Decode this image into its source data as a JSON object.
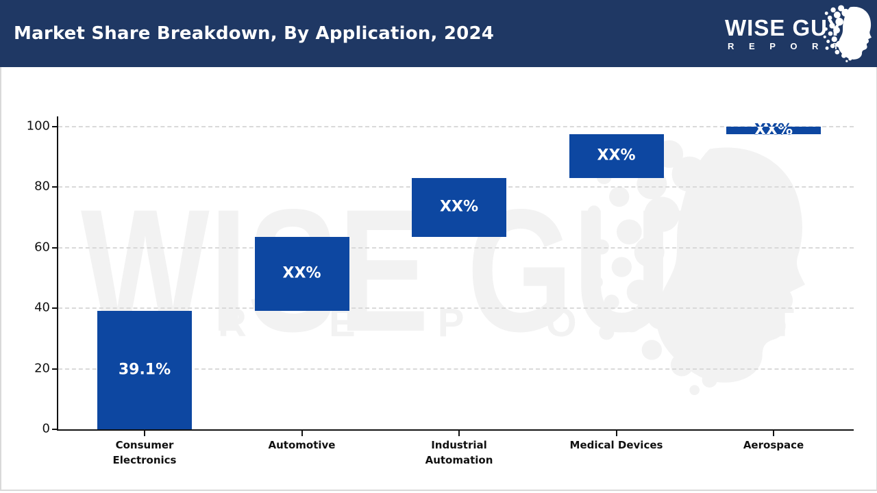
{
  "header": {
    "title": "Market Share Breakdown, By Application, 2024",
    "logo": {
      "wordmark": "WISE GUY",
      "subtext": "R E P O R T S"
    }
  },
  "watermark": {
    "wordmark": "WISE GUY",
    "subtext": "R E P O R T S"
  },
  "colors": {
    "header_bg": "#1f3864",
    "bar": "#0d47a1",
    "grid": "#d9d9d9",
    "axis": "#111111",
    "bar_label": "#ffffff",
    "watermark": "#f2f2f2"
  },
  "chart_data": {
    "type": "bar",
    "subtype": "waterfall-stacked-market-share",
    "title": "Market Share Breakdown, By Application, 2024",
    "categories": [
      "Consumer Electronics",
      "Automotive",
      "Industrial Automation",
      "Medical Devices",
      "Aerospace"
    ],
    "x_label_lines": [
      [
        "Consumer",
        "Electronics"
      ],
      [
        "Automotive"
      ],
      [
        "Industrial",
        "Automation"
      ],
      [
        "Medical Devices"
      ],
      [
        "Aerospace"
      ]
    ],
    "segments": [
      {
        "category": "Consumer Electronics",
        "start": 0,
        "end": 39.1,
        "label": "39.1%"
      },
      {
        "category": "Automotive",
        "start": 39.1,
        "end": 63.5,
        "label": "XX%"
      },
      {
        "category": "Industrial Automation",
        "start": 63.5,
        "end": 83.0,
        "label": "XX%"
      },
      {
        "category": "Medical Devices",
        "start": 83.0,
        "end": 97.5,
        "label": "XX%"
      },
      {
        "category": "Aerospace",
        "start": 97.5,
        "end": 100.0,
        "label": "XX%"
      }
    ],
    "ylim": [
      0,
      100
    ],
    "yticks": [
      0,
      20,
      40,
      60,
      80,
      100
    ],
    "grid": {
      "horizontal": true,
      "style": "dashed"
    },
    "legend": null,
    "bar_color": "#0d47a1"
  }
}
